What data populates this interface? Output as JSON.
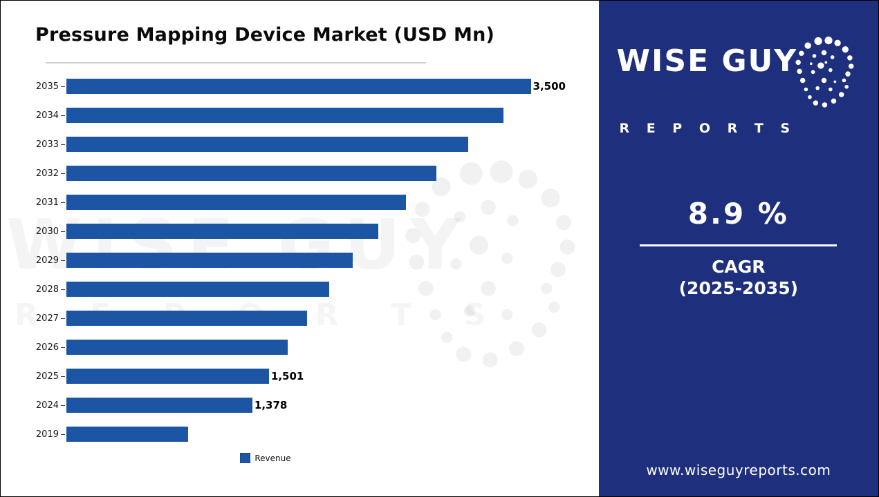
{
  "title": "Pressure Mapping Device Market (USD Mn)",
  "chart_data": {
    "type": "bar",
    "orientation": "horizontal",
    "title": "Pressure Mapping Device Market (USD Mn)",
    "categories": [
      "2035",
      "2034",
      "2033",
      "2032",
      "2031",
      "2030",
      "2029",
      "2028",
      "2027",
      "2026",
      "2025",
      "2024",
      "2019"
    ],
    "values": [
      3500,
      3240,
      2975,
      2740,
      2515,
      2310,
      2120,
      1945,
      1785,
      1640,
      1501,
      1378,
      900
    ],
    "value_labels": {
      "2035": "3,500",
      "2025": "1,501",
      "2024": "1,378"
    },
    "xlabel": "",
    "ylabel": "",
    "xlim": [
      0,
      3700
    ],
    "grid": false,
    "legend": [
      "Revenue"
    ],
    "legend_position": "bottom",
    "bar_color": "#1c55a4"
  },
  "legend": {
    "revenue_label": "Revenue"
  },
  "sidebar": {
    "logo_title": "WISE GUY",
    "logo_subtitle": "R E P O R T S",
    "cagr_value": "8.9 %",
    "cagr_line1": "CAGR",
    "cagr_line2": "(2025-2035)",
    "website": "www.wiseguyreports.com",
    "panel_color": "#1e2f7e"
  },
  "watermark": {
    "line1": "WISE GUY",
    "line2": "R E P O R T S"
  }
}
